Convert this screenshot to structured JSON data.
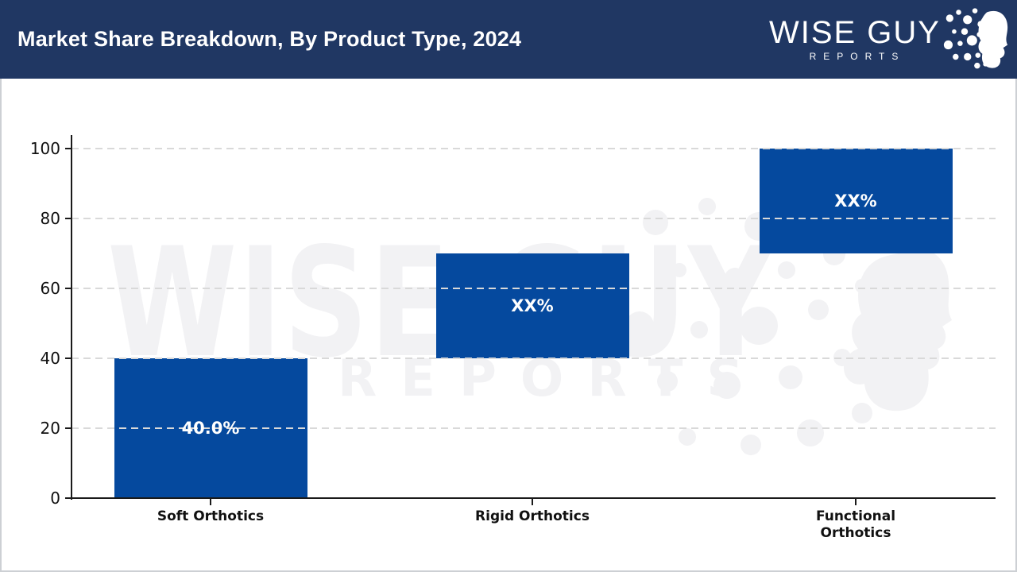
{
  "page": {
    "bg": "#ffffff",
    "border_color": "#cdd0d4"
  },
  "header": {
    "bg": "#203763",
    "title": "Market Share Breakdown, By Product Type, 2024",
    "logo": {
      "wordmark": "WISE GUY",
      "subtitle": "REPORTS"
    }
  },
  "watermark": {
    "line1": "WISE GUY",
    "line2": "REPORTS"
  },
  "chart_data": {
    "type": "bar",
    "variant": "waterfall",
    "title": "Market Share Breakdown, By Product Type, 2024",
    "categories": [
      "Soft Orthotics",
      "Rigid Orthotics",
      "Functional Orthotics"
    ],
    "category_display_lines": [
      [
        "Soft Orthotics"
      ],
      [
        "Rigid Orthotics"
      ],
      [
        "Functional",
        "Orthotics"
      ]
    ],
    "segments": [
      {
        "category": "Soft Orthotics",
        "start": 0,
        "end": 40,
        "value_label": "40.0%"
      },
      {
        "category": "Rigid Orthotics",
        "start": 40,
        "end": 70,
        "value_label": "XX%"
      },
      {
        "category": "Functional Orthotics",
        "start": 70,
        "end": 100,
        "value_label": "XX%"
      }
    ],
    "yticks": [
      0,
      20,
      40,
      60,
      80,
      100
    ],
    "ylim": [
      0,
      104
    ],
    "xlabel": "",
    "ylabel": "",
    "grid": "horizontal-dashed",
    "legend": "none",
    "bar_color": "#05499e",
    "grid_color": "#d9d9d9",
    "axis_color": "#1a1a1a",
    "in_bar_label_color": "#ffffff"
  }
}
